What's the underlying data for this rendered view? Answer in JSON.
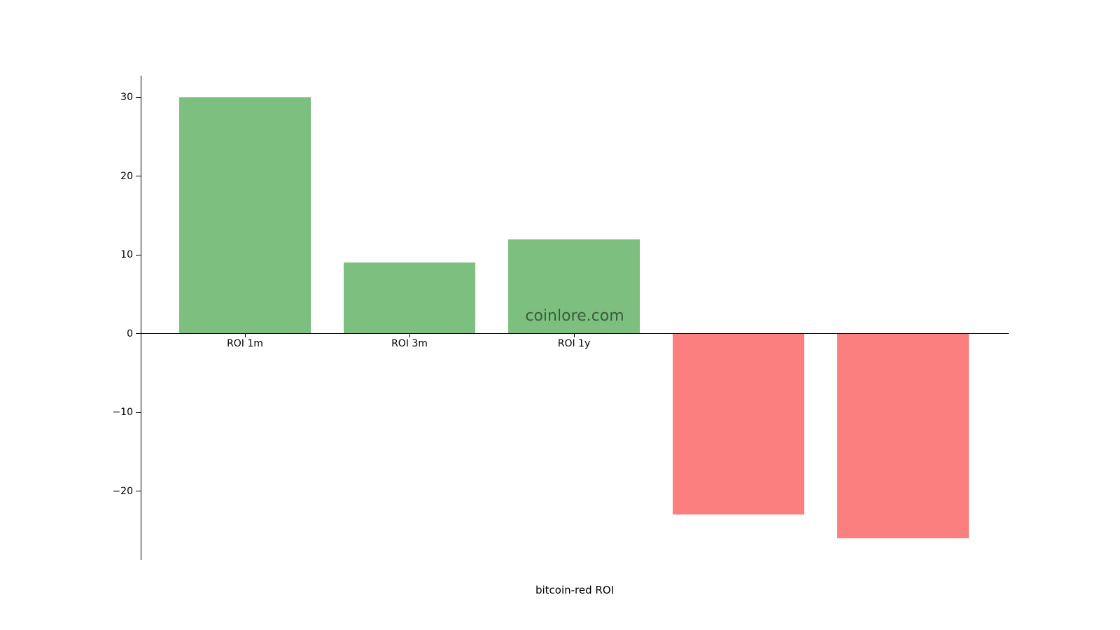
{
  "chart_data": {
    "type": "bar",
    "title": "bitcoin-red ROI",
    "watermark": "coinlore.com",
    "categories": [
      "ROI 1m",
      "ROI 3m",
      "ROI 1y",
      "",
      ""
    ],
    "values": [
      30,
      9,
      12,
      -23,
      -26
    ],
    "yticks": [
      30,
      20,
      10,
      0,
      -10,
      -20
    ],
    "ytick_labels": [
      "30",
      "20",
      "10",
      "0",
      "−10",
      "−20"
    ],
    "xlabel": "",
    "ylabel": "",
    "ylim": [
      -28.8,
      32.8
    ],
    "grid": false,
    "legend": "none",
    "positive_color": "#7cbf7e",
    "negative_color": "#fc7f7f",
    "axis_color": "#000000",
    "background_color": "#ffffff"
  }
}
